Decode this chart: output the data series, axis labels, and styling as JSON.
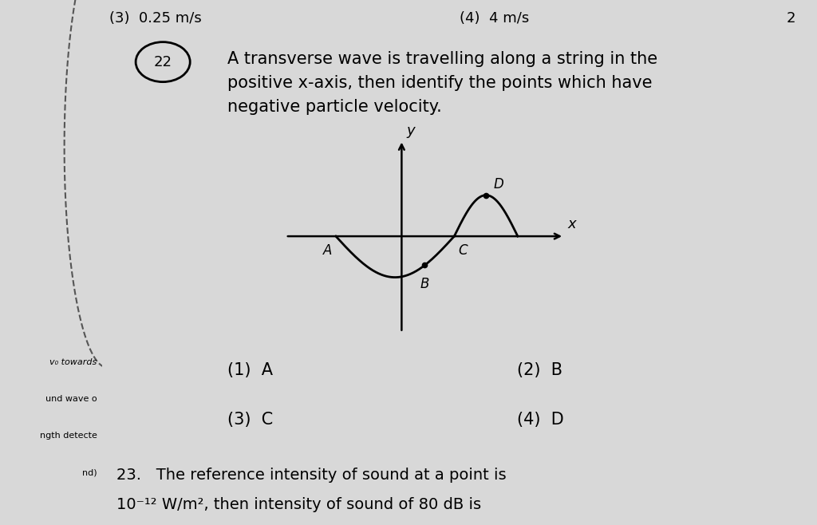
{
  "background_color": "#d8d8d8",
  "fig_width": 10.24,
  "fig_height": 6.58,
  "question_number": "22",
  "question_text_line1": "A transverse wave is travelling along a string in the",
  "question_text_line2": "positive x-axis, then identify the points which have",
  "question_text_line3": "negative particle velocity.",
  "text_color": "#000000",
  "font_size_question": 15,
  "font_size_options": 15,
  "left_strip_color": "#b0b0b0",
  "wave_amplitude": 0.35,
  "opt1": "(1)  A",
  "opt2": "(2)  B",
  "opt3": "(3)  C",
  "opt4": "(4)  D",
  "bottom_text": "23.   The reference intensity of sound at a point is",
  "bottom_text2": "10⁻¹² W/m², then intensity of sound of 80 dB is"
}
